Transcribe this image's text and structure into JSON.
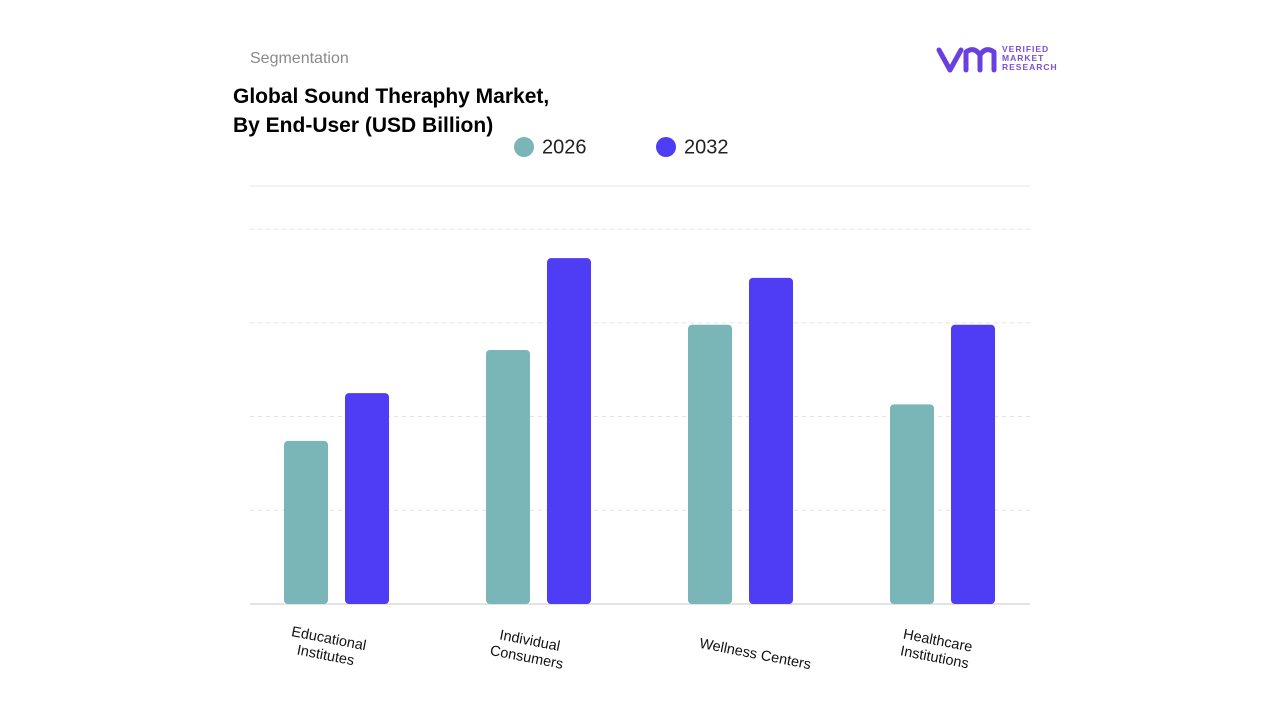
{
  "logo": {
    "text": "VERIFIED\nMARKET\nRESEARCH"
  },
  "chart_data": {
    "type": "bar",
    "subtitle": "Segmentation",
    "title": "Global Sound Theraphy Market,\nBy End-User (USD Billion)",
    "categories": [
      "Educational\nInstitutes",
      "Individual\nConsumers",
      "Wellness Centers",
      "Healthcare\nInstitutions"
    ],
    "series": [
      {
        "name": "2026",
        "color": "#7ab5b8",
        "values": [
          1.74,
          2.71,
          2.98,
          2.13
        ]
      },
      {
        "name": "2032",
        "color": "#4f3cf5",
        "values": [
          2.25,
          3.69,
          3.48,
          2.98
        ]
      }
    ],
    "ylim": [
      0,
      4.46
    ],
    "yticks": [
      1,
      2,
      3,
      4
    ],
    "grid": true
  }
}
